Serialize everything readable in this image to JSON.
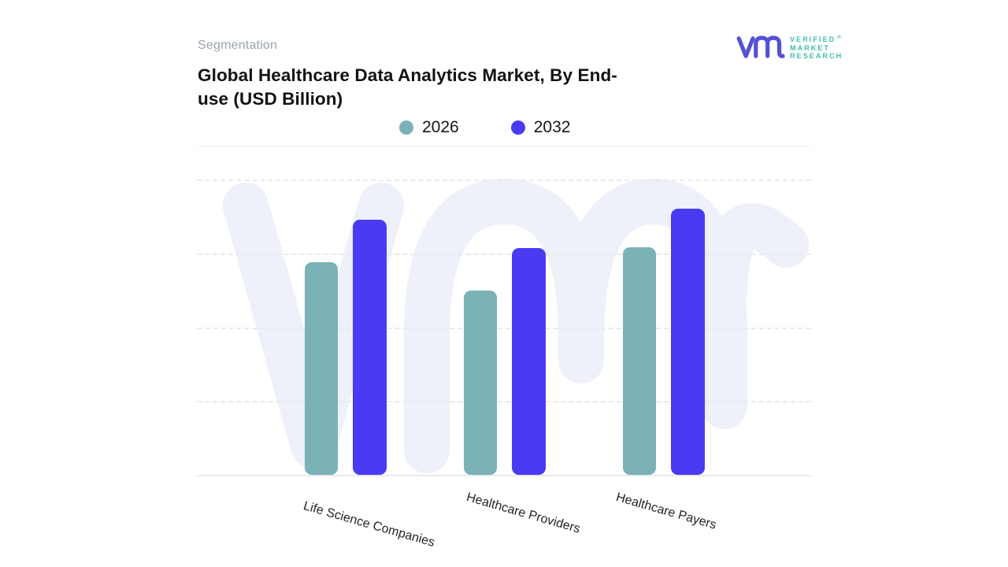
{
  "header": {
    "eyebrow": "Segmentation",
    "title_lines": [
      "Global Healthcare Data Analytics Market, By End-",
      "use (USD Billion)"
    ]
  },
  "logo": {
    "mark": "vmr-monogram",
    "mark_color": "#5551d4",
    "text_color": "#3fc0ab",
    "lines": [
      "VERIFIED",
      "MARKET",
      "RESEARCH"
    ],
    "registered": "®"
  },
  "legend": {
    "position": "top",
    "items": [
      {
        "label": "2026",
        "color": "#7ab2b8"
      },
      {
        "label": "2032",
        "color": "#4a3bf2"
      }
    ]
  },
  "chart_data": {
    "type": "bar",
    "title": "Global Healthcare Data Analytics Market, By End-use (USD Billion)",
    "categories": [
      "Life Science Companies",
      "Healthcare Providers",
      "Healthcare Payers"
    ],
    "series": [
      {
        "name": "2026",
        "color": "#7ab2b8",
        "values": [
          2.88,
          2.5,
          3.08
        ]
      },
      {
        "name": "2032",
        "color": "#4a3bf2",
        "values": [
          3.46,
          3.07,
          3.61
        ]
      }
    ],
    "value_unit": "gridline intervals (y-axis has no numeric labels)",
    "ylim": [
      0,
      4.45
    ],
    "xlabel": "",
    "ylabel": "",
    "grid": "4 dashed horizontal gridlines, solid top border and solid baseline",
    "x_tick_rotation_deg": 16,
    "legend_position": "top",
    "watermark": "vmr monogram (light lavender, behind bars)"
  }
}
